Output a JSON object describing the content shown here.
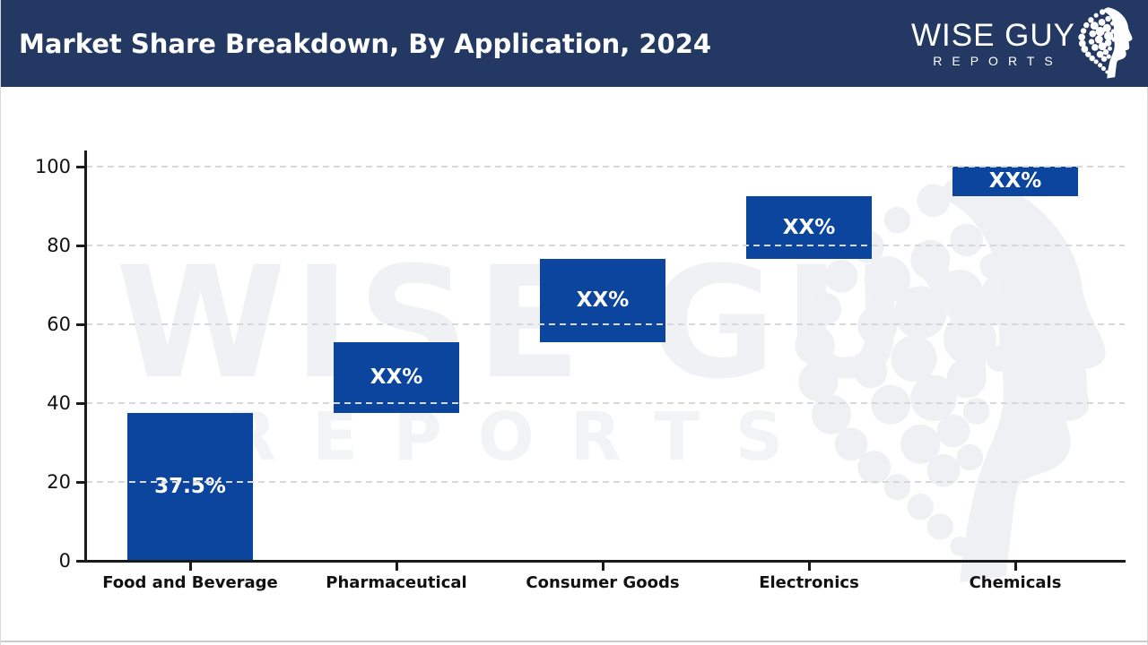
{
  "header": {
    "title": "Market Share Breakdown, By Application, 2024",
    "logo": {
      "name": "WISE GUY",
      "subtitle": "REPORTS"
    }
  },
  "watermark": {
    "line1": "WISE GUY",
    "line2": "REPORTS"
  },
  "chart_data": {
    "type": "bar",
    "subtype": "waterfall-stacked",
    "title": "Market Share Breakdown, By Application, 2024",
    "categories": [
      "Food and Beverage",
      "Pharmaceutical",
      "Consumer Goods",
      "Electronics",
      "Chemicals"
    ],
    "bars": [
      {
        "category": "Food and Beverage",
        "start": 0,
        "end": 37.5,
        "label": "37.5%"
      },
      {
        "category": "Pharmaceutical",
        "start": 37.5,
        "end": 55.5,
        "label": "XX%"
      },
      {
        "category": "Consumer Goods",
        "start": 55.5,
        "end": 76.5,
        "label": "XX%"
      },
      {
        "category": "Electronics",
        "start": 76.5,
        "end": 92.5,
        "label": "XX%"
      },
      {
        "category": "Chemicals",
        "start": 92.5,
        "end": 100,
        "label": "XX%"
      }
    ],
    "xlabel": "",
    "ylabel": "",
    "ylim": [
      0,
      100
    ],
    "yticks": [
      0,
      20,
      40,
      60,
      80,
      100
    ],
    "grid": "horizontal-dashed",
    "legend": "none",
    "bar_color": "#0c459d",
    "bar_label_color": "#ffffff"
  },
  "colors": {
    "header_bg": "#233863",
    "bar": "#0c459d",
    "gridline": "#d8d8d8",
    "axis": "#1a1a1a",
    "watermark": "#eff1f4"
  }
}
